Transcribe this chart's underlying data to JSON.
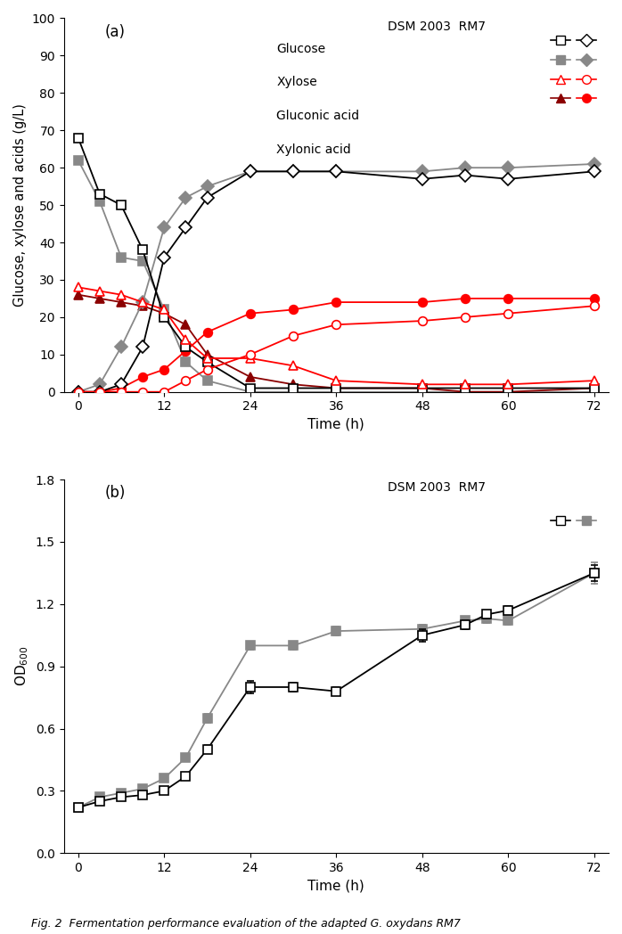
{
  "panel_a": {
    "time_dsm": [
      0,
      3,
      6,
      9,
      12,
      15,
      18,
      24,
      30,
      36,
      48,
      54,
      60,
      72
    ],
    "time_rm7": [
      0,
      3,
      6,
      9,
      12,
      15,
      18,
      24,
      30,
      36,
      48,
      54,
      60,
      72
    ],
    "glucose_dsm": [
      68,
      53,
      50,
      38,
      20,
      12,
      8,
      1,
      1,
      1,
      1,
      1,
      1,
      1
    ],
    "glucose_rm7": [
      62,
      51,
      36,
      35,
      22,
      8,
      3,
      0,
      0,
      0,
      0,
      0,
      0,
      0
    ],
    "xylose_dsm": [
      28,
      27,
      26,
      24,
      22,
      14,
      9,
      9,
      7,
      3,
      2,
      2,
      2,
      3
    ],
    "xylose_rm7": [
      26,
      25,
      24,
      23,
      21,
      18,
      10,
      4,
      2,
      1,
      1,
      0,
      0,
      1
    ],
    "gluconic_dsm": [
      0,
      0,
      2,
      12,
      36,
      44,
      52,
      59,
      59,
      59,
      57,
      58,
      57,
      59
    ],
    "gluconic_rm7": [
      0,
      2,
      12,
      24,
      44,
      52,
      55,
      59,
      59,
      59,
      59,
      60,
      60,
      61
    ],
    "xylonic_dsm": [
      0,
      0,
      0,
      0,
      0,
      3,
      6,
      10,
      15,
      18,
      19,
      20,
      21,
      23
    ],
    "xylonic_rm7": [
      0,
      0,
      1,
      4,
      6,
      11,
      16,
      21,
      22,
      24,
      24,
      25,
      25,
      25
    ]
  },
  "panel_b": {
    "time_dsm": [
      0,
      3,
      6,
      9,
      12,
      15,
      18,
      24,
      30,
      36,
      48,
      54,
      57,
      60,
      72
    ],
    "time_rm7": [
      0,
      3,
      6,
      9,
      12,
      15,
      18,
      24,
      30,
      36,
      48,
      54,
      57,
      60,
      72
    ],
    "od_dsm": [
      0.22,
      0.25,
      0.27,
      0.28,
      0.3,
      0.37,
      0.5,
      0.8,
      0.8,
      0.78,
      1.05,
      1.1,
      1.15,
      1.17,
      1.35
    ],
    "od_rm7": [
      0.22,
      0.27,
      0.29,
      0.31,
      0.36,
      0.46,
      0.65,
      1.0,
      1.0,
      1.07,
      1.08,
      1.12,
      1.13,
      1.12,
      1.35
    ],
    "od_dsm_err": [
      0.01,
      0.01,
      0.01,
      0.01,
      0.01,
      0.01,
      0.02,
      0.03,
      0.02,
      0.02,
      0.03,
      0.02,
      0.02,
      0.02,
      0.04
    ],
    "od_rm7_err": [
      0.01,
      0.01,
      0.01,
      0.01,
      0.01,
      0.01,
      0.02,
      0.02,
      0.02,
      0.02,
      0.02,
      0.02,
      0.02,
      0.02,
      0.05
    ]
  },
  "colors": {
    "black": "#000000",
    "gray": "#888888",
    "red": "#FF0000",
    "dark_red": "#8B0000"
  },
  "xlabel": "Time (h)",
  "ylabel_a": "Glucose, xylose and acids (g/L)",
  "ylabel_b": "OD$_{600}$",
  "label_a": "(a)",
  "label_b": "(b)",
  "xticks": [
    0,
    12,
    24,
    36,
    48,
    60,
    72
  ],
  "ylim_a": [
    0,
    100
  ],
  "ylim_b": [
    0.0,
    1.8
  ],
  "yticks_a": [
    0,
    10,
    20,
    30,
    40,
    50,
    60,
    70,
    80,
    90,
    100
  ],
  "yticks_b": [
    0.0,
    0.3,
    0.6,
    0.9,
    1.2,
    1.5,
    1.8
  ],
  "caption": "Fig. 2  Fermentation performance evaluation of the adapted G. oxydans RM7"
}
